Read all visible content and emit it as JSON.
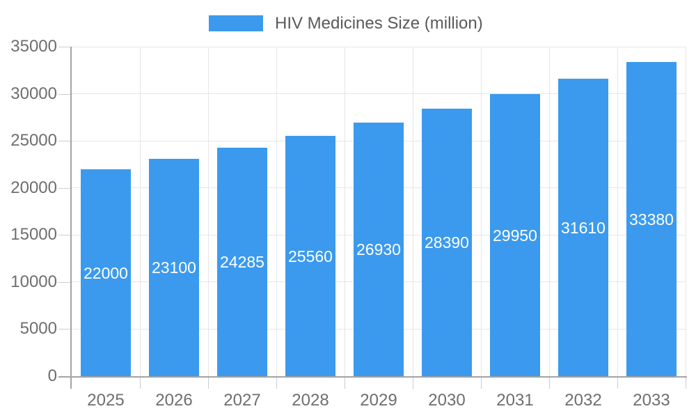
{
  "legend": {
    "label": "HIV Medicines Size (million)"
  },
  "colors": {
    "bar": "#3B9AED",
    "grid": "#E6E6E6",
    "axis": "#A3A3A3",
    "tick": "#CCCCCC",
    "axis_text": "#6E6E6E",
    "legend_text": "#5A5A5A",
    "bar_label_text": "#FFFFFF",
    "background": "#FFFFFF"
  },
  "chart_data": {
    "type": "bar",
    "title": "HIV Medicines Size (million)",
    "categories": [
      "2025",
      "2026",
      "2027",
      "2028",
      "2029",
      "2030",
      "2031",
      "2032",
      "2033"
    ],
    "values": [
      22000,
      23100,
      24285,
      25560,
      26930,
      28390,
      29950,
      31610,
      33380
    ],
    "series": [
      {
        "name": "HIV Medicines Size (million)",
        "values": [
          22000,
          23100,
          24285,
          25560,
          26930,
          28390,
          29950,
          31610,
          33380
        ]
      }
    ],
    "xlabel": "",
    "ylabel": "",
    "ylim": [
      0,
      35000
    ],
    "yticks": [
      0,
      5000,
      10000,
      15000,
      20000,
      25000,
      30000,
      35000
    ],
    "grid": "both",
    "legend_position": "top",
    "bar_value_labels_visible": true,
    "bar_value_label_position": "inside-center"
  }
}
